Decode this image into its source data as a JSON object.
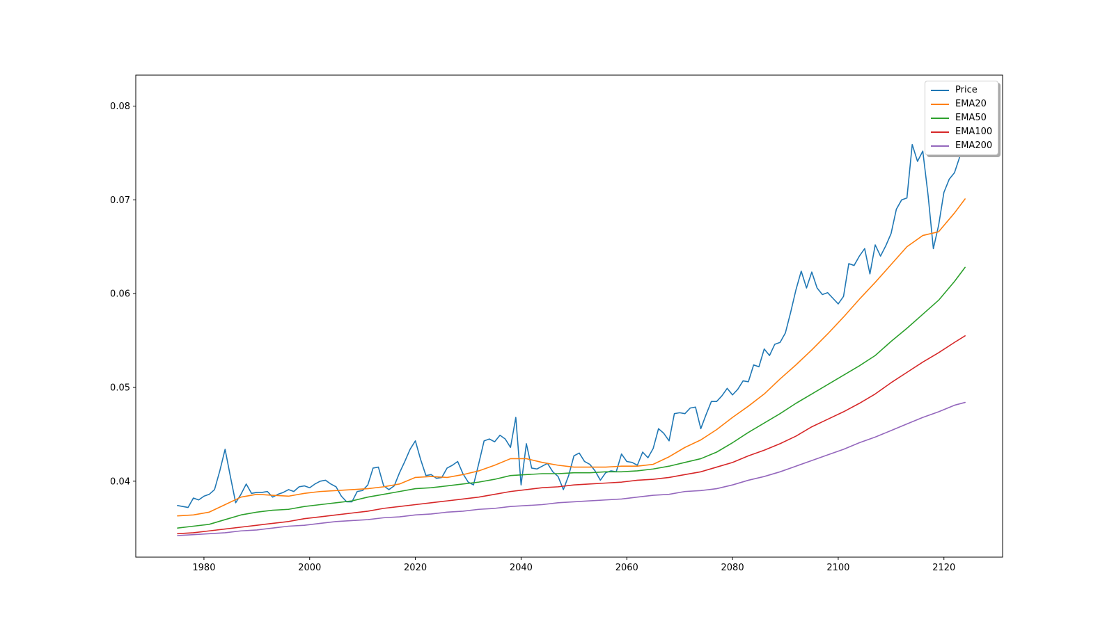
{
  "figure": {
    "background": "#ffffff",
    "frame_color": "#000000"
  },
  "chart_data": {
    "type": "line",
    "title": "",
    "xlabel": "",
    "ylabel": "",
    "grid": false,
    "legend_position": "upper right",
    "xlim": [
      1967.1,
      2131.1
    ],
    "ylim": [
      0.0319,
      0.0833
    ],
    "x_ticks": [
      1980,
      2000,
      2020,
      2040,
      2060,
      2080,
      2100,
      2120
    ],
    "x_tick_labels": [
      "1980",
      "2000",
      "2020",
      "2040",
      "2060",
      "2080",
      "2100",
      "2120"
    ],
    "y_ticks": [
      0.04,
      0.05,
      0.06,
      0.07,
      0.08
    ],
    "y_tick_labels": [
      "0.04",
      "0.05",
      "0.06",
      "0.07",
      "0.08"
    ],
    "series": [
      {
        "name": "Price",
        "color": "#1f77b4",
        "x": [
          1975,
          1976,
          1977,
          1978,
          1979,
          1980,
          1981,
          1982,
          1983,
          1984,
          1985,
          1986,
          1987,
          1988,
          1989,
          1990,
          1991,
          1992,
          1993,
          1994,
          1995,
          1996,
          1997,
          1998,
          1999,
          2000,
          2001,
          2002,
          2003,
          2004,
          2005,
          2006,
          2007,
          2008,
          2009,
          2010,
          2011,
          2012,
          2013,
          2014,
          2015,
          2016,
          2017,
          2018,
          2019,
          2020,
          2021,
          2022,
          2023,
          2024,
          2025,
          2026,
          2027,
          2028,
          2029,
          2030,
          2031,
          2032,
          2033,
          2034,
          2035,
          2036,
          2037,
          2038,
          2039,
          2040,
          2041,
          2042,
          2043,
          2044,
          2045,
          2046,
          2047,
          2048,
          2049,
          2050,
          2051,
          2052,
          2053,
          2054,
          2055,
          2056,
          2057,
          2058,
          2059,
          2060,
          2061,
          2062,
          2063,
          2064,
          2065,
          2066,
          2067,
          2068,
          2069,
          2070,
          2071,
          2072,
          2073,
          2074,
          2075,
          2076,
          2077,
          2078,
          2079,
          2080,
          2081,
          2082,
          2083,
          2084,
          2085,
          2086,
          2087,
          2088,
          2089,
          2090,
          2091,
          2092,
          2093,
          2094,
          2095,
          2096,
          2097,
          2098,
          2099,
          2100,
          2101,
          2102,
          2103,
          2104,
          2105,
          2106,
          2107,
          2108,
          2109,
          2110,
          2111,
          2112,
          2113,
          2114,
          2115,
          2116,
          2117,
          2118,
          2119,
          2120,
          2121,
          2122,
          2123,
          2124
        ],
        "y": [
          0.0374,
          0.0373,
          0.0372,
          0.0382,
          0.038,
          0.0384,
          0.0386,
          0.0391,
          0.0411,
          0.0434,
          0.0405,
          0.0377,
          0.0386,
          0.0397,
          0.0387,
          0.0388,
          0.0388,
          0.0389,
          0.0383,
          0.0386,
          0.0388,
          0.0391,
          0.0389,
          0.0394,
          0.0395,
          0.0393,
          0.0397,
          0.04,
          0.0401,
          0.0397,
          0.0394,
          0.0384,
          0.0378,
          0.0378,
          0.0389,
          0.039,
          0.0396,
          0.0414,
          0.0415,
          0.0395,
          0.0391,
          0.0395,
          0.0409,
          0.0421,
          0.0434,
          0.0443,
          0.0423,
          0.0406,
          0.0407,
          0.0403,
          0.0404,
          0.0414,
          0.0417,
          0.0421,
          0.0408,
          0.0399,
          0.0396,
          0.0419,
          0.0443,
          0.0445,
          0.0442,
          0.0449,
          0.0445,
          0.0436,
          0.0468,
          0.0396,
          0.044,
          0.0414,
          0.0413,
          0.0416,
          0.0419,
          0.041,
          0.0405,
          0.0391,
          0.0406,
          0.0427,
          0.043,
          0.0421,
          0.0418,
          0.0411,
          0.0401,
          0.0409,
          0.0411,
          0.041,
          0.0429,
          0.0421,
          0.042,
          0.0417,
          0.0431,
          0.0425,
          0.0435,
          0.0456,
          0.0451,
          0.0443,
          0.0472,
          0.0473,
          0.0472,
          0.0478,
          0.0479,
          0.0456,
          0.0471,
          0.0485,
          0.0485,
          0.0491,
          0.0499,
          0.0492,
          0.0498,
          0.0507,
          0.0506,
          0.0524,
          0.0522,
          0.0541,
          0.0534,
          0.0546,
          0.0548,
          0.0558,
          0.058,
          0.0604,
          0.0624,
          0.0606,
          0.0623,
          0.0606,
          0.0599,
          0.0601,
          0.0595,
          0.0589,
          0.0597,
          0.0632,
          0.063,
          0.064,
          0.0648,
          0.0621,
          0.0652,
          0.064,
          0.0651,
          0.0664,
          0.069,
          0.07,
          0.0702,
          0.0759,
          0.0741,
          0.0752,
          0.0705,
          0.0648,
          0.0673,
          0.0708,
          0.0722,
          0.0729,
          0.0746,
          0.0808
        ]
      },
      {
        "name": "EMA20",
        "color": "#ff7f0e",
        "x": [
          1975,
          1978,
          1981,
          1984,
          1987,
          1990,
          1993,
          1996,
          1999,
          2002,
          2005,
          2008,
          2011,
          2014,
          2017,
          2020,
          2023,
          2026,
          2029,
          2032,
          2035,
          2038,
          2041,
          2044,
          2047,
          2050,
          2053,
          2056,
          2059,
          2062,
          2065,
          2068,
          2071,
          2074,
          2077,
          2080,
          2083,
          2086,
          2089,
          2092,
          2095,
          2098,
          2101,
          2104,
          2107,
          2110,
          2113,
          2116,
          2119,
          2122,
          2124
        ],
        "y": [
          0.0363,
          0.0364,
          0.0367,
          0.0375,
          0.0383,
          0.0386,
          0.0385,
          0.0384,
          0.0387,
          0.0389,
          0.039,
          0.0391,
          0.0392,
          0.0394,
          0.0397,
          0.0404,
          0.0405,
          0.0404,
          0.0407,
          0.0411,
          0.0417,
          0.0424,
          0.0424,
          0.042,
          0.0417,
          0.0415,
          0.0415,
          0.0415,
          0.0416,
          0.0416,
          0.0418,
          0.0426,
          0.0436,
          0.0444,
          0.0455,
          0.0468,
          0.048,
          0.0493,
          0.0509,
          0.0524,
          0.054,
          0.0557,
          0.0575,
          0.0594,
          0.0612,
          0.0631,
          0.065,
          0.0662,
          0.0666,
          0.0686,
          0.0701
        ]
      },
      {
        "name": "EMA50",
        "color": "#2ca02c",
        "x": [
          1975,
          1978,
          1981,
          1984,
          1987,
          1990,
          1993,
          1996,
          1999,
          2002,
          2005,
          2008,
          2011,
          2014,
          2017,
          2020,
          2023,
          2026,
          2029,
          2032,
          2035,
          2038,
          2041,
          2044,
          2047,
          2050,
          2053,
          2056,
          2059,
          2062,
          2065,
          2068,
          2071,
          2074,
          2077,
          2080,
          2083,
          2086,
          2089,
          2092,
          2095,
          2098,
          2101,
          2104,
          2107,
          2110,
          2113,
          2116,
          2119,
          2122,
          2124
        ],
        "y": [
          0.035,
          0.0352,
          0.0354,
          0.0359,
          0.0364,
          0.0367,
          0.0369,
          0.037,
          0.0373,
          0.0375,
          0.0377,
          0.0379,
          0.0383,
          0.0386,
          0.0389,
          0.0392,
          0.0393,
          0.0395,
          0.0397,
          0.0399,
          0.0402,
          0.0406,
          0.0407,
          0.0408,
          0.0408,
          0.0409,
          0.0409,
          0.041,
          0.041,
          0.0411,
          0.0413,
          0.0416,
          0.042,
          0.0424,
          0.0431,
          0.0441,
          0.0452,
          0.0462,
          0.0472,
          0.0483,
          0.0493,
          0.0503,
          0.0513,
          0.0523,
          0.0534,
          0.0549,
          0.0563,
          0.0578,
          0.0593,
          0.0613,
          0.0628
        ]
      },
      {
        "name": "EMA100",
        "color": "#d62728",
        "x": [
          1975,
          1978,
          1981,
          1984,
          1987,
          1990,
          1993,
          1996,
          1999,
          2002,
          2005,
          2008,
          2011,
          2014,
          2017,
          2020,
          2023,
          2026,
          2029,
          2032,
          2035,
          2038,
          2041,
          2044,
          2047,
          2050,
          2053,
          2056,
          2059,
          2062,
          2065,
          2068,
          2071,
          2074,
          2077,
          2080,
          2083,
          2086,
          2089,
          2092,
          2095,
          2098,
          2101,
          2104,
          2107,
          2110,
          2113,
          2116,
          2119,
          2122,
          2124
        ],
        "y": [
          0.0344,
          0.0345,
          0.0347,
          0.0349,
          0.0351,
          0.0353,
          0.0355,
          0.0357,
          0.036,
          0.0362,
          0.0364,
          0.0366,
          0.0368,
          0.0371,
          0.0373,
          0.0375,
          0.0377,
          0.0379,
          0.0381,
          0.0383,
          0.0386,
          0.0389,
          0.0391,
          0.0393,
          0.0394,
          0.0396,
          0.0397,
          0.0398,
          0.0399,
          0.0401,
          0.0402,
          0.0404,
          0.0407,
          0.041,
          0.0415,
          0.042,
          0.0427,
          0.0433,
          0.044,
          0.0448,
          0.0458,
          0.0466,
          0.0474,
          0.0483,
          0.0493,
          0.0505,
          0.0516,
          0.0527,
          0.0537,
          0.0548,
          0.0555
        ]
      },
      {
        "name": "EMA200",
        "color": "#9467bd",
        "x": [
          1975,
          1978,
          1981,
          1984,
          1987,
          1990,
          1993,
          1996,
          1999,
          2002,
          2005,
          2008,
          2011,
          2014,
          2017,
          2020,
          2023,
          2026,
          2029,
          2032,
          2035,
          2038,
          2041,
          2044,
          2047,
          2050,
          2053,
          2056,
          2059,
          2062,
          2065,
          2068,
          2071,
          2074,
          2077,
          2080,
          2083,
          2086,
          2089,
          2092,
          2095,
          2098,
          2101,
          2104,
          2107,
          2110,
          2113,
          2116,
          2119,
          2122,
          2124
        ],
        "y": [
          0.0342,
          0.0343,
          0.0344,
          0.0345,
          0.0347,
          0.0348,
          0.035,
          0.0352,
          0.0353,
          0.0355,
          0.0357,
          0.0358,
          0.0359,
          0.0361,
          0.0362,
          0.0364,
          0.0365,
          0.0367,
          0.0368,
          0.037,
          0.0371,
          0.0373,
          0.0374,
          0.0375,
          0.0377,
          0.0378,
          0.0379,
          0.038,
          0.0381,
          0.0383,
          0.0385,
          0.0386,
          0.0389,
          0.039,
          0.0392,
          0.0396,
          0.0401,
          0.0405,
          0.041,
          0.0416,
          0.0422,
          0.0428,
          0.0434,
          0.0441,
          0.0447,
          0.0454,
          0.0461,
          0.0468,
          0.0474,
          0.0481,
          0.0484
        ]
      }
    ]
  },
  "legend": {
    "entries": [
      {
        "label": "Price",
        "color": "#1f77b4"
      },
      {
        "label": "EMA20",
        "color": "#ff7f0e"
      },
      {
        "label": "EMA50",
        "color": "#2ca02c"
      },
      {
        "label": "EMA100",
        "color": "#d62728"
      },
      {
        "label": "EMA200",
        "color": "#9467bd"
      }
    ]
  }
}
